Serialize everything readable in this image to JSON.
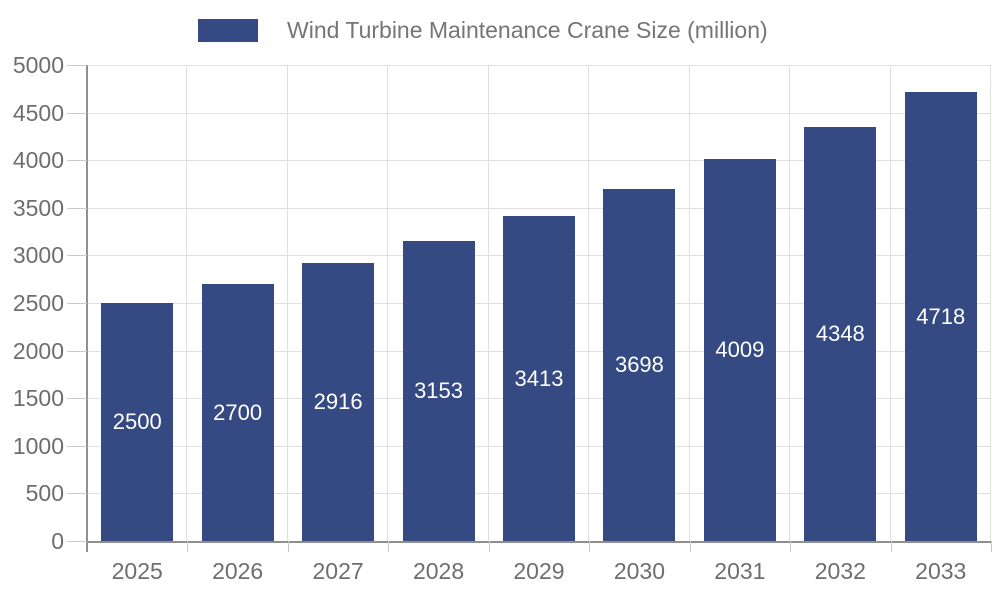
{
  "colors": {
    "bar": "#354982",
    "grid": "#e0e0e0",
    "tick": "#c9c9c9",
    "axis": "#8f8f8f",
    "axis_label": "#6e6e6e",
    "legend_text": "#757575",
    "value_label": "#ffffff",
    "background": "#ffffff"
  },
  "chart_data": {
    "type": "bar",
    "title": "",
    "legend": "Wind Turbine Maintenance Crane Size (million)",
    "legend_position": "top",
    "categories": [
      "2025",
      "2026",
      "2027",
      "2028",
      "2029",
      "2030",
      "2031",
      "2032",
      "2033"
    ],
    "values": [
      2500,
      2700,
      2916,
      3153,
      3413,
      3698,
      4009,
      4348,
      4718
    ],
    "xlabel": "",
    "ylabel": "",
    "ylim": [
      0,
      5000
    ],
    "ytick_step": 500,
    "yticks": [
      0,
      500,
      1000,
      1500,
      2000,
      2500,
      3000,
      3500,
      4000,
      4500,
      5000
    ],
    "grid": true,
    "value_labels_inside_bars": true
  }
}
